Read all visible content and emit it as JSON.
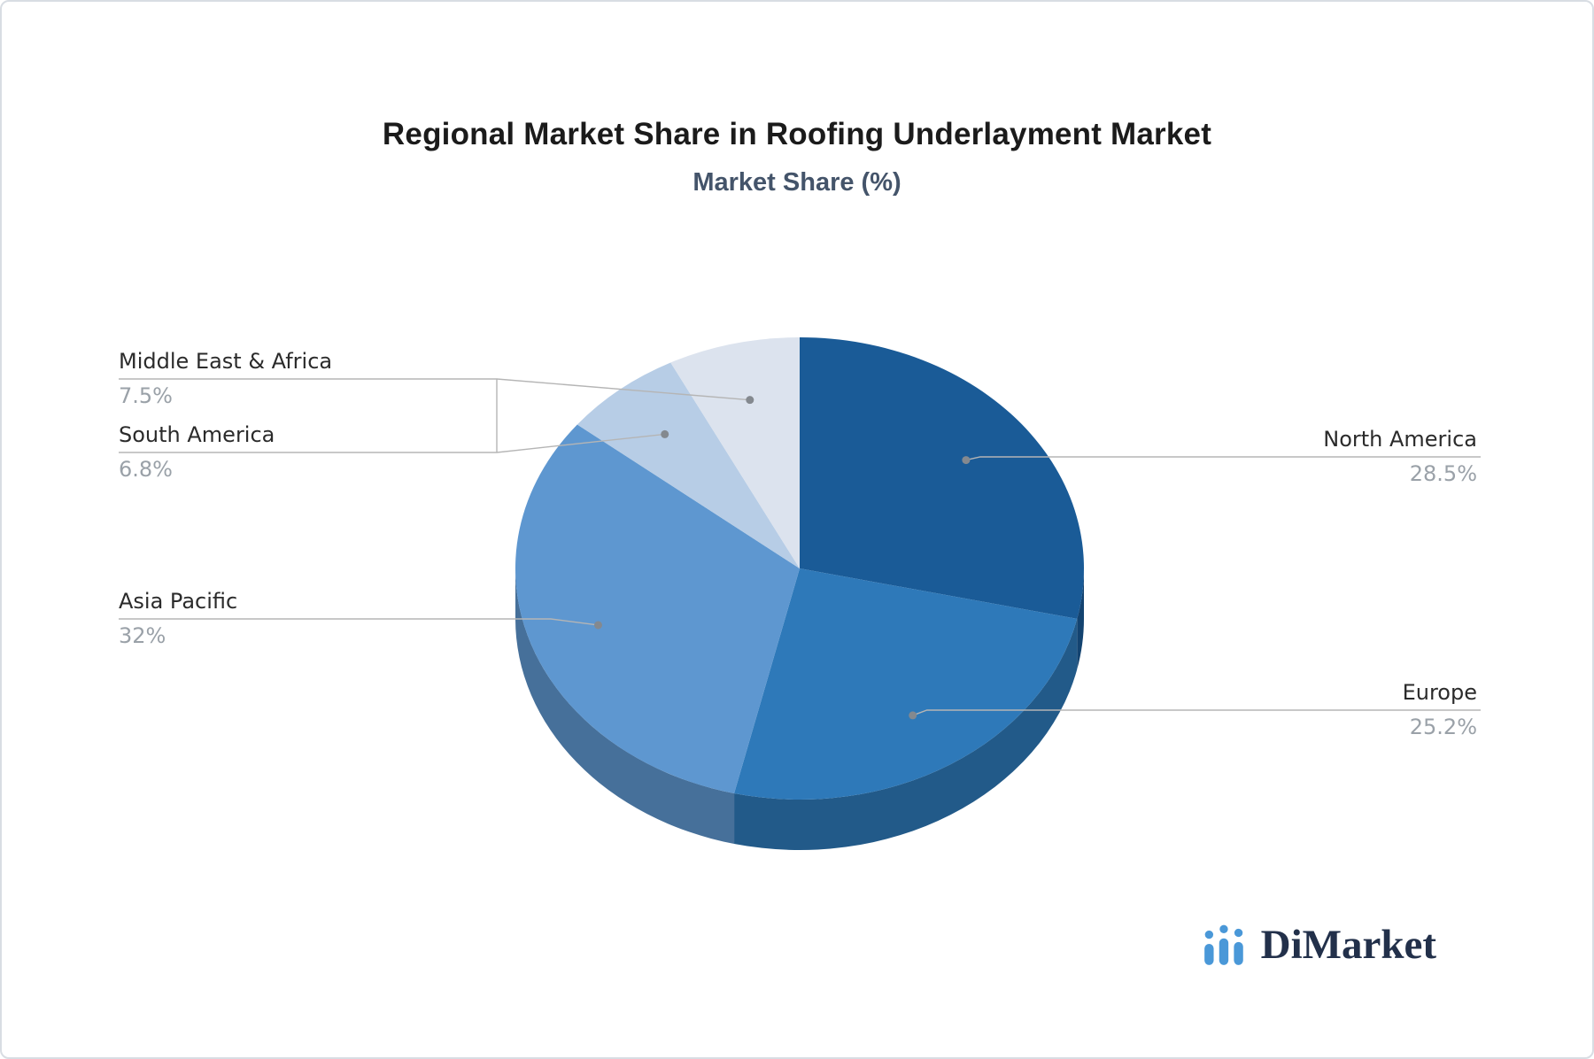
{
  "chart_data": {
    "type": "pie",
    "title": "Regional Market Share in Roofing Underlayment Market",
    "subtitle": "Market Share (%)",
    "unit": "%",
    "effect": "3d",
    "start_angle_deg": 0,
    "direction": "clockwise",
    "legend": "none",
    "slices": [
      {
        "label": "North America",
        "value": 28.5,
        "value_label": "28.5%",
        "color": "#1a5b97"
      },
      {
        "label": "Europe",
        "value": 25.2,
        "value_label": "25.2%",
        "color": "#2e79b9"
      },
      {
        "label": "Asia Pacific",
        "value": 32,
        "value_label": "32%",
        "color": "#5e97d0"
      },
      {
        "label": "South America",
        "value": 6.8,
        "value_label": "6.8%",
        "color": "#b7cde6"
      },
      {
        "label": "Middle East & Africa",
        "value": 7.5,
        "value_label": "7.5%",
        "color": "#dce3ee"
      }
    ],
    "leader_line_color": "#b5b5b5",
    "leader_dot_color": "#84898f"
  },
  "branding": {
    "logo_text": "DiMarket",
    "logo_icon": "bar-chart-icon",
    "logo_text_color": "#22304a",
    "icon_color": "#4a98d8"
  }
}
